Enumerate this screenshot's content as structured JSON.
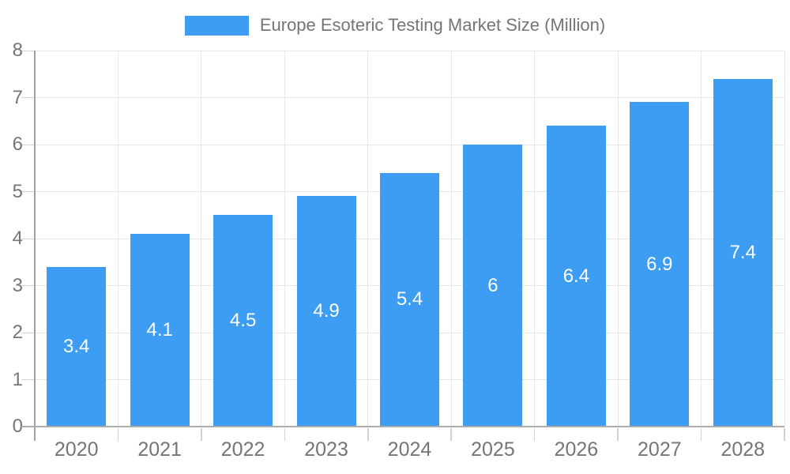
{
  "legend": {
    "label": "Europe Esoteric Testing Market Size (Million)"
  },
  "colors": {
    "bar": "#3D9DF3",
    "grid": "#E6E6E6",
    "tick": "#D2D2D2",
    "axis_x": "#ADADAD",
    "axis_y": "#A3A3A3",
    "text": "#757575",
    "value_label": "#FFFFFF",
    "background": "#FFFFFF"
  },
  "chart_data": {
    "type": "bar",
    "title": "Europe Esoteric Testing Market Size (Million)",
    "categories": [
      "2020",
      "2021",
      "2022",
      "2023",
      "2024",
      "2025",
      "2026",
      "2027",
      "2028"
    ],
    "values": [
      3.4,
      4.1,
      4.5,
      4.9,
      5.4,
      6,
      6.4,
      6.9,
      7.4
    ],
    "value_labels": [
      "3.4",
      "4.1",
      "4.5",
      "4.9",
      "5.4",
      "6",
      "6.4",
      "6.9",
      "7.4"
    ],
    "series_name": "Europe Esoteric Testing Market Size (Million)",
    "xlabel": "",
    "ylabel": "",
    "ylim": [
      0,
      8
    ],
    "yticks": [
      0,
      1,
      2,
      3,
      4,
      5,
      6,
      7,
      8
    ],
    "grid": true,
    "legend_position": "top-center",
    "value_label_position": "inside-center"
  }
}
